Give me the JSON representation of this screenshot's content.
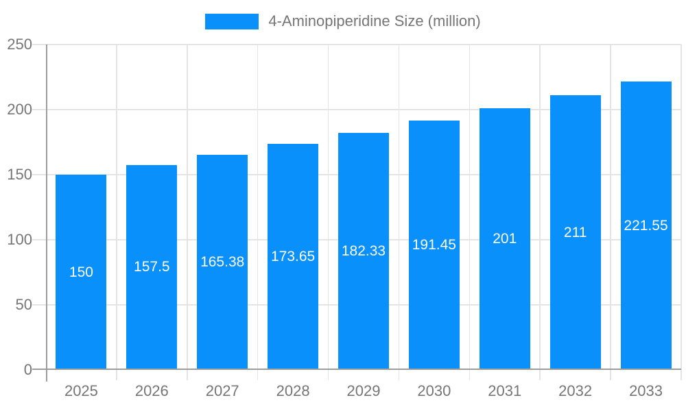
{
  "legend": {
    "label": "4-Aminopiperidine Size (million)"
  },
  "chart_data": {
    "type": "bar",
    "title": "4-Aminopiperidine Size (million)",
    "categories": [
      "2025",
      "2026",
      "2027",
      "2028",
      "2029",
      "2030",
      "2031",
      "2032",
      "2033"
    ],
    "values": [
      150,
      157.5,
      165.38,
      173.65,
      182.33,
      191.45,
      201,
      211,
      221.55
    ],
    "value_labels": [
      "150",
      "157.5",
      "165.38",
      "173.65",
      "182.33",
      "191.45",
      "201",
      "211",
      "221.55"
    ],
    "xlabel": "",
    "ylabel": "",
    "ylim": [
      0,
      250
    ],
    "yticks": [
      0,
      50,
      100,
      150,
      200,
      250
    ],
    "grid": true,
    "legend_position": "top-center",
    "colors": {
      "bar": "#0990fa",
      "grid": "#e4e4e4",
      "axis": "#9c9c9c",
      "tick_text": "#757575",
      "value_label": "#ffffff",
      "background": "#ffffff"
    }
  }
}
